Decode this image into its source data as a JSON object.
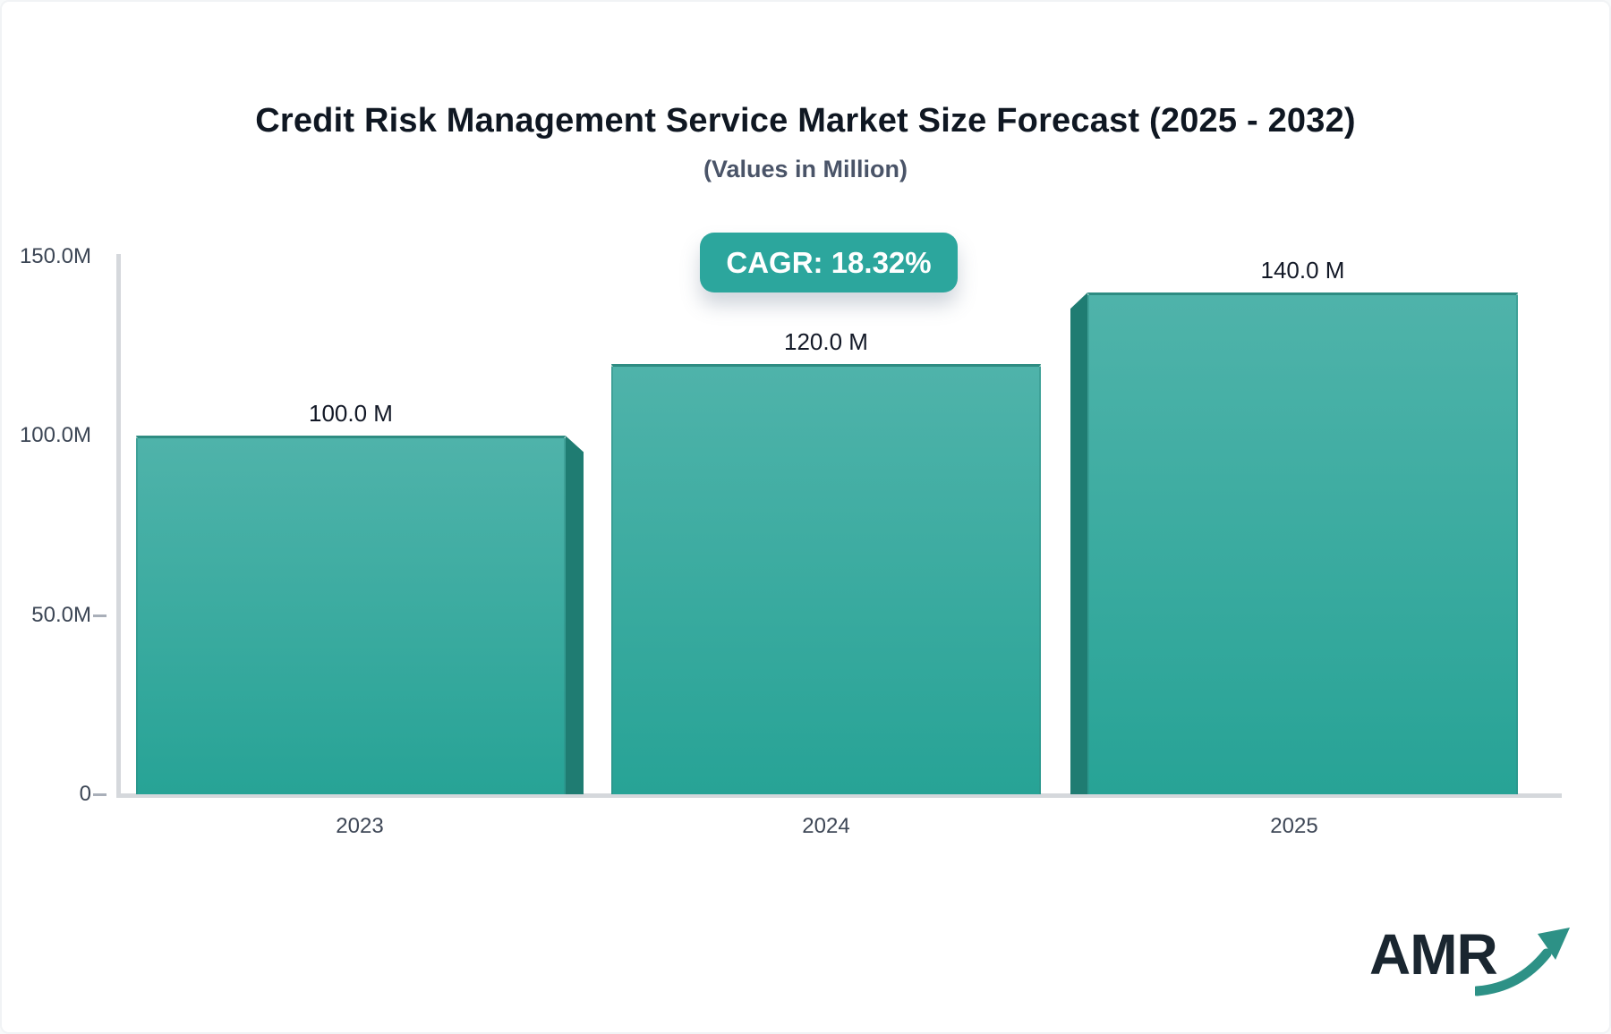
{
  "header": {
    "title": "Credit Risk Management Service Market Size Forecast (2025 - 2032)",
    "subtitle": "(Values in Million)"
  },
  "badge": {
    "label": "CAGR: 18.32%"
  },
  "logo": {
    "text": "AMR",
    "icon": "trend-up-arrow-icon"
  },
  "colors": {
    "accent": "#2CA69D",
    "bar_top": "#4FB3AA",
    "bar_bottom": "#27A396",
    "bar_side": "#1F7C72",
    "bar_edge": "#2E8C82",
    "axis_line": "#D5D8DC",
    "title_text": "#0F1722",
    "subtitle_text": "#4A5468",
    "tick_text": "#3B4554"
  },
  "chart_data": {
    "type": "bar",
    "title": "Credit Risk Management Service Market Size Forecast (2025 - 2032)",
    "subtitle": "(Values in Million)",
    "categories": [
      "2023",
      "2024",
      "2025"
    ],
    "values": [
      100.0,
      120.0,
      140.0
    ],
    "bar_labels": [
      "100.0 M",
      "120.0 M",
      "140.0 M"
    ],
    "unit": "Million",
    "ylim": [
      0,
      150
    ],
    "y_ticks": [
      {
        "value": 150,
        "label": "150.0M"
      },
      {
        "value": 100,
        "label": "100.0M"
      },
      {
        "value": 50,
        "label": "50.0M"
      },
      {
        "value": 0,
        "label": "0"
      }
    ],
    "grid": "off",
    "legend": "none",
    "annotations": [
      "CAGR: 18.32%"
    ]
  }
}
